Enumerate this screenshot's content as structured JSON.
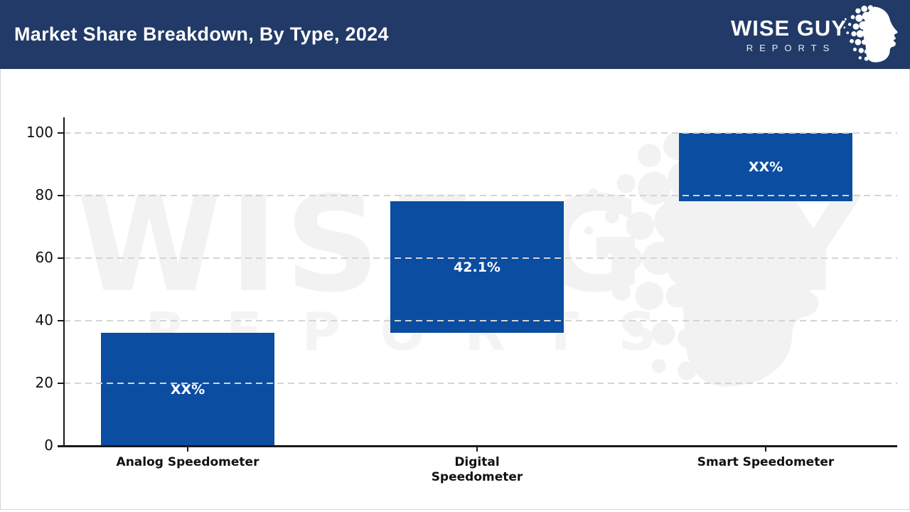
{
  "header": {
    "title": "Market Share Breakdown, By Type, 2024",
    "bg_color": "#213a67",
    "logo": {
      "name": "WISE GUY",
      "subtitle": "REPORTS",
      "face_icon": "dotted-head-profile"
    }
  },
  "watermark": {
    "name": "WISE GUY",
    "subtitle": "REPORTS",
    "face_icon": "dotted-head-profile",
    "color": "#f2f2f2"
  },
  "chart_data": {
    "type": "bar",
    "subtype": "floating-waterfall",
    "title": "Market Share Breakdown, By Type, 2024",
    "categories": [
      "Analog Speedometer",
      "Digital\nSpeedometer",
      "Smart Speedometer"
    ],
    "bars": [
      {
        "category": "Analog Speedometer",
        "start": 0,
        "end": 36.1,
        "value": 36.1,
        "label": "XX%"
      },
      {
        "category": "Digital Speedometer",
        "start": 36.1,
        "end": 78.2,
        "value": 42.1,
        "label": "42.1%"
      },
      {
        "category": "Smart Speedometer",
        "start": 78.2,
        "end": 100,
        "value": 21.8,
        "label": "XX%"
      }
    ],
    "yticks": [
      0,
      20,
      40,
      60,
      80,
      100
    ],
    "ylim": [
      0,
      105
    ],
    "xlabel": "",
    "ylabel": "",
    "grid": "dashed-horizontal",
    "gridline_color": "#d4d4d4",
    "legend": "none",
    "bar_color": "#0b4da1",
    "bar_label_color": "#ffffff",
    "axis_color": "#1a1a1a"
  }
}
